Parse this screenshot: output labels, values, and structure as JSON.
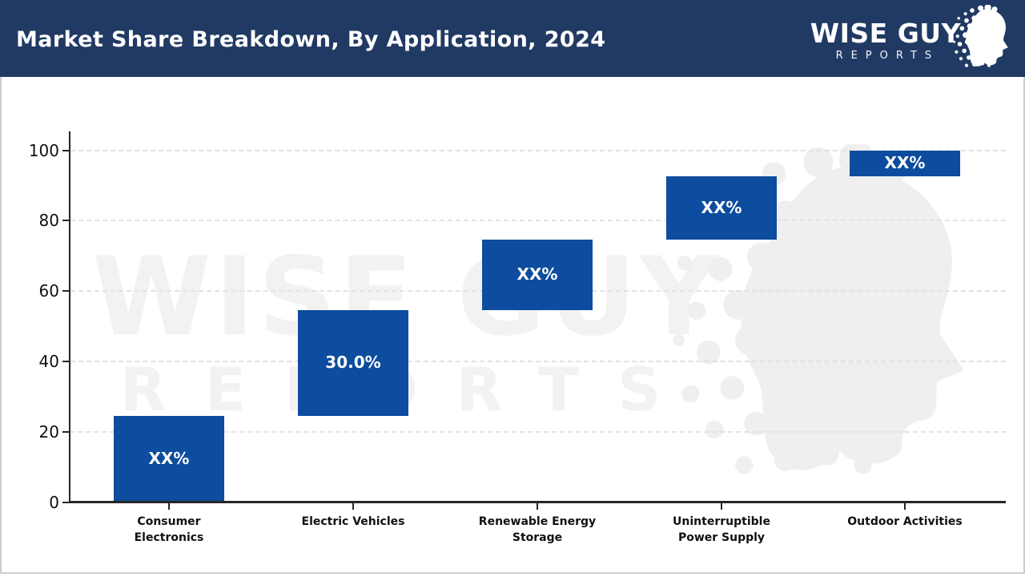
{
  "header": {
    "title": "Market Share Breakdown, By Application, 2024",
    "logo_line1": "WISE GUY",
    "logo_line2": "REPORTS"
  },
  "watermark": {
    "line1": "WISE GUY",
    "line2": "REPORTS"
  },
  "chart_data": {
    "type": "bar",
    "subtype": "waterfall",
    "title": "Market Share Breakdown, By Application, 2024",
    "xlabel": "",
    "ylabel": "",
    "ylim": [
      0,
      105
    ],
    "yticks": [
      0,
      20,
      40,
      60,
      80,
      100
    ],
    "grid": "horizontal-dashed",
    "legend": "none",
    "bar_color": "#0d4c9e",
    "value_label_color": "#ffffff",
    "categories": [
      "Consumer Electronics",
      "Electric Vehicles",
      "Renewable Energy Storage",
      "Uninterruptible Power Supply",
      "Outdoor Activities"
    ],
    "category_label_lines": [
      [
        "Consumer",
        "Electronics"
      ],
      [
        "Electric Vehicles"
      ],
      [
        "Renewable Energy",
        "Storage"
      ],
      [
        "Uninterruptible",
        "Power Supply"
      ],
      [
        "Outdoor Activities"
      ]
    ],
    "bars": [
      {
        "category": "Consumer Electronics",
        "start": 0,
        "end": 24.5,
        "value_estimate": 24.5,
        "label": "XX%"
      },
      {
        "category": "Electric Vehicles",
        "start": 24.5,
        "end": 54.5,
        "value_estimate": 30.0,
        "label": "30.0%"
      },
      {
        "category": "Renewable Energy Storage",
        "start": 54.5,
        "end": 74.5,
        "value_estimate": 20.0,
        "label": "XX%"
      },
      {
        "category": "Uninterruptible Power Supply",
        "start": 74.5,
        "end": 92.5,
        "value_estimate": 18.0,
        "label": "XX%"
      },
      {
        "category": "Outdoor Activities",
        "start": 92.5,
        "end": 100.0,
        "value_estimate": 7.5,
        "label": "XX%"
      }
    ]
  }
}
